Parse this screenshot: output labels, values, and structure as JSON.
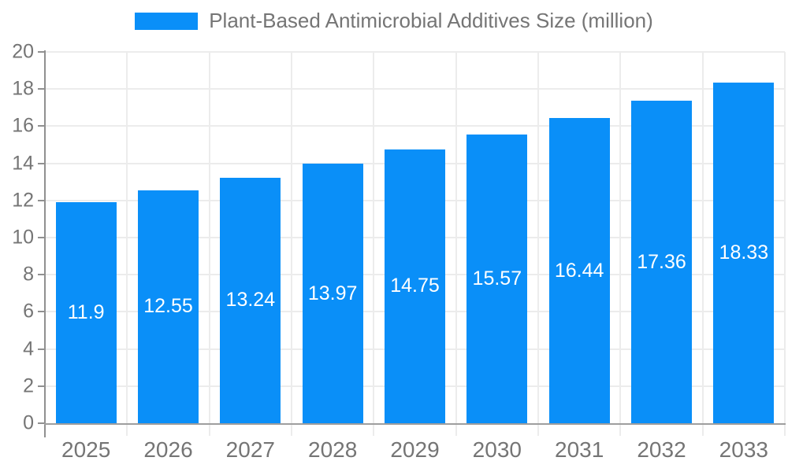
{
  "chart_data": {
    "type": "bar",
    "title": "Plant-Based Antimicrobial Additives Size (million)",
    "legend": {
      "position": "top",
      "entries": [
        "Plant-Based Antimicrobial Additives Size (million)"
      ]
    },
    "categories": [
      "2025",
      "2026",
      "2027",
      "2028",
      "2029",
      "2030",
      "2031",
      "2032",
      "2033"
    ],
    "values": [
      11.9,
      12.55,
      13.24,
      13.97,
      14.75,
      15.57,
      16.44,
      17.36,
      18.33
    ],
    "xlabel": "",
    "ylabel": "",
    "ylim": [
      0,
      20
    ],
    "ytick_step": 2,
    "yticks": [
      0,
      2,
      4,
      6,
      8,
      10,
      12,
      14,
      16,
      18,
      20
    ],
    "grid": "horizontal and vertical light gridlines",
    "value_labels": "white, centered inside bars"
  },
  "colors": {
    "bar": "#0a8ff8",
    "text": "#757575",
    "value_label": "#ffffff",
    "gridline": "#ececec",
    "axis": "#909090",
    "background": "#ffffff"
  }
}
